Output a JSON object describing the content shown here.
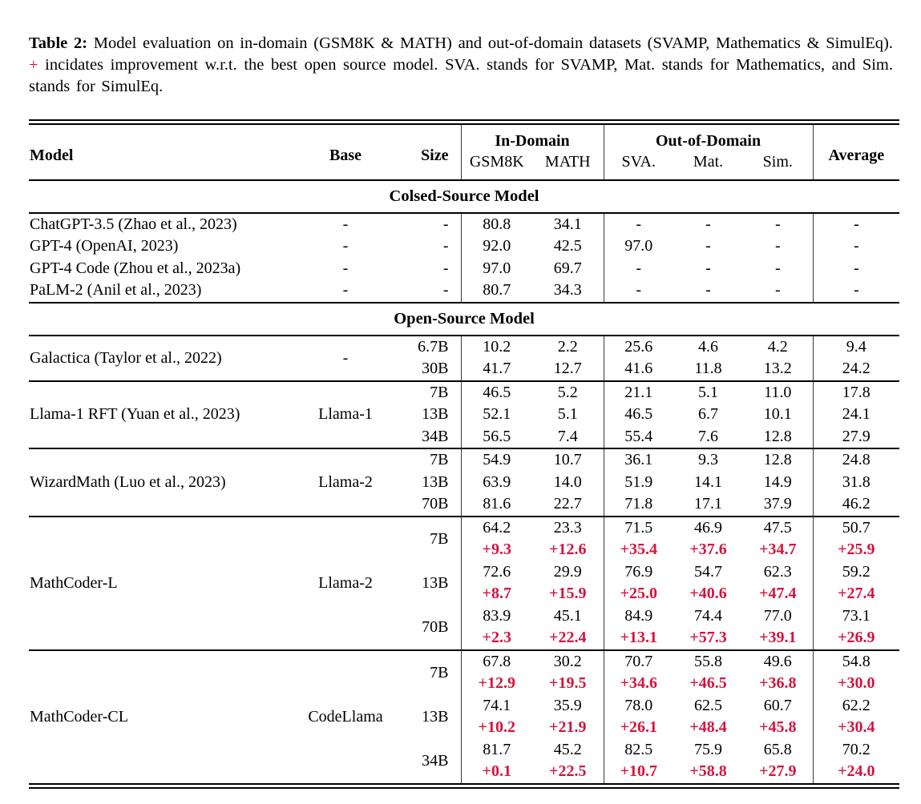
{
  "caption": {
    "label": "Table 2:",
    "text_before_plus": " Model evaluation on in-domain (GSM8K & MATH) and out-of-domain datasets (SVAMP, Mathematics & SimulEq). ",
    "plus_sign": "+",
    "text_after_plus": " incidates improvement w.r.t. the best open source model. SVA. stands for SVAMP, Mat. stands for Mathematics, and Sim. stands for SimulEq."
  },
  "table": {
    "header": {
      "model": "Model",
      "base": "Base",
      "size": "Size",
      "in_domain": "In-Domain",
      "out_of_domain": "Out-of-Domain",
      "average": "Average",
      "sub": [
        "GSM8K",
        "MATH",
        "SVA.",
        "Mat.",
        "Sim."
      ]
    },
    "colors": {
      "delta_red": "#d6133d",
      "rule_black": "#000000"
    },
    "sections": [
      {
        "title": "Colsed-Source Model",
        "divide_groups": false,
        "groups": [
          {
            "model": "ChatGPT-3.5 (Zhao et al., 2023)",
            "base": "-",
            "rows": [
              {
                "size": "-",
                "values": [
                  "80.8",
                  "34.1",
                  "-",
                  "-",
                  "-",
                  "-"
                ]
              }
            ]
          },
          {
            "model": "GPT-4 (OpenAI, 2023)",
            "base": "-",
            "rows": [
              {
                "size": "-",
                "values": [
                  "92.0",
                  "42.5",
                  "97.0",
                  "-",
                  "-",
                  "-"
                ]
              }
            ]
          },
          {
            "model": "GPT-4 Code (Zhou et al., 2023a)",
            "base": "-",
            "rows": [
              {
                "size": "-",
                "values": [
                  "97.0",
                  "69.7",
                  "-",
                  "-",
                  "-",
                  "-"
                ]
              }
            ]
          },
          {
            "model": "PaLM-2 (Anil et al., 2023)",
            "base": "-",
            "rows": [
              {
                "size": "-",
                "values": [
                  "80.7",
                  "34.3",
                  "-",
                  "-",
                  "-",
                  "-"
                ]
              }
            ]
          }
        ]
      },
      {
        "title": "Open-Source Model",
        "divide_groups": true,
        "groups": [
          {
            "model": "Galactica (Taylor et al., 2022)",
            "base": "-",
            "rows": [
              {
                "size": "6.7B",
                "values": [
                  "10.2",
                  "2.2",
                  "25.6",
                  "4.6",
                  "4.2",
                  "9.4"
                ]
              },
              {
                "size": "30B",
                "values": [
                  "41.7",
                  "12.7",
                  "41.6",
                  "11.8",
                  "13.2",
                  "24.2"
                ]
              }
            ]
          },
          {
            "model": "Llama-1 RFT (Yuan et al., 2023)",
            "base": "Llama-1",
            "rows": [
              {
                "size": "7B",
                "values": [
                  "46.5",
                  "5.2",
                  "21.1",
                  "5.1",
                  "11.0",
                  "17.8"
                ]
              },
              {
                "size": "13B",
                "values": [
                  "52.1",
                  "5.1",
                  "46.5",
                  "6.7",
                  "10.1",
                  "24.1"
                ]
              },
              {
                "size": "34B",
                "values": [
                  "56.5",
                  "7.4",
                  "55.4",
                  "7.6",
                  "12.8",
                  "27.9"
                ]
              }
            ]
          },
          {
            "model": "WizardMath (Luo et al., 2023)",
            "base": "Llama-2",
            "rows": [
              {
                "size": "7B",
                "values": [
                  "54.9",
                  "10.7",
                  "36.1",
                  "9.3",
                  "12.8",
                  "24.8"
                ]
              },
              {
                "size": "13B",
                "values": [
                  "63.9",
                  "14.0",
                  "51.9",
                  "14.1",
                  "14.9",
                  "31.8"
                ]
              },
              {
                "size": "70B",
                "values": [
                  "81.6",
                  "22.7",
                  "71.8",
                  "17.1",
                  "37.9",
                  "46.2"
                ]
              }
            ]
          },
          {
            "model": "MathCoder-L",
            "base": "Llama-2",
            "rows": [
              {
                "size": "7B",
                "values": [
                  "64.2",
                  "23.3",
                  "71.5",
                  "46.9",
                  "47.5",
                  "50.7"
                ],
                "deltas": [
                  "+9.3",
                  "+12.6",
                  "+35.4",
                  "+37.6",
                  "+34.7",
                  "+25.9"
                ]
              },
              {
                "size": "13B",
                "values": [
                  "72.6",
                  "29.9",
                  "76.9",
                  "54.7",
                  "62.3",
                  "59.2"
                ],
                "deltas": [
                  "+8.7",
                  "+15.9",
                  "+25.0",
                  "+40.6",
                  "+47.4",
                  "+27.4"
                ]
              },
              {
                "size": "70B",
                "values": [
                  "83.9",
                  "45.1",
                  "84.9",
                  "74.4",
                  "77.0",
                  "73.1"
                ],
                "deltas": [
                  "+2.3",
                  "+22.4",
                  "+13.1",
                  "+57.3",
                  "+39.1",
                  "+26.9"
                ]
              }
            ]
          },
          {
            "model": "MathCoder-CL",
            "base": "CodeLlama",
            "rows": [
              {
                "size": "7B",
                "values": [
                  "67.8",
                  "30.2",
                  "70.7",
                  "55.8",
                  "49.6",
                  "54.8"
                ],
                "deltas": [
                  "+12.9",
                  "+19.5",
                  "+34.6",
                  "+46.5",
                  "+36.8",
                  "+30.0"
                ]
              },
              {
                "size": "13B",
                "values": [
                  "74.1",
                  "35.9",
                  "78.0",
                  "62.5",
                  "60.7",
                  "62.2"
                ],
                "deltas": [
                  "+10.2",
                  "+21.9",
                  "+26.1",
                  "+48.4",
                  "+45.8",
                  "+30.4"
                ]
              },
              {
                "size": "34B",
                "values": [
                  "81.7",
                  "45.2",
                  "82.5",
                  "75.9",
                  "65.8",
                  "70.2"
                ],
                "deltas": [
                  "+0.1",
                  "+22.5",
                  "+10.7",
                  "+58.8",
                  "+27.9",
                  "+24.0"
                ]
              }
            ]
          }
        ]
      }
    ]
  }
}
